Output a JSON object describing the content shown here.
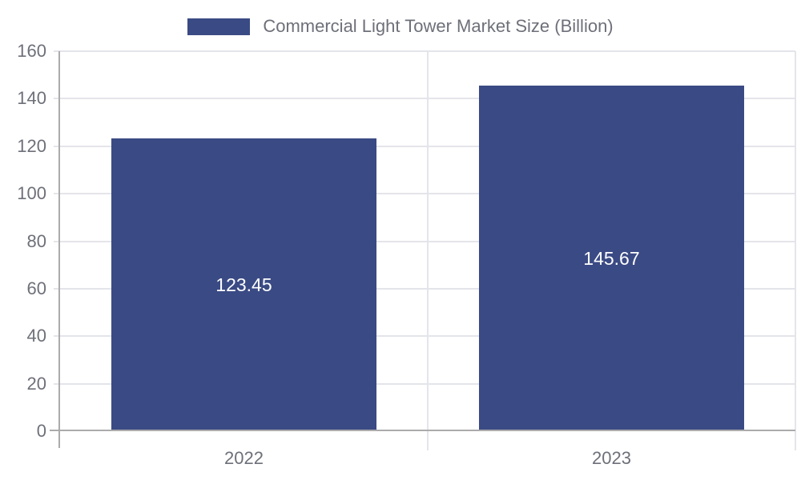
{
  "legend": {
    "items": [
      {
        "label": "Commercial Light Tower Market Size (Billion)"
      }
    ]
  },
  "chart_data": {
    "type": "bar",
    "title": "Commercial Light Tower Market Size (Billion)",
    "categories": [
      "2022",
      "2023"
    ],
    "series": [
      {
        "name": "Commercial Light Tower Market Size (Billion)",
        "values": [
          123.45,
          145.67
        ]
      }
    ],
    "value_labels": [
      "123.45",
      "145.67"
    ],
    "xlabel": "",
    "ylabel": "",
    "ylim": [
      0,
      160
    ],
    "yticks": [
      0,
      20,
      40,
      60,
      80,
      100,
      120,
      140,
      160
    ],
    "grid": true,
    "legend_position": "top-center",
    "colors": {
      "bar": "#3A4A84",
      "axis_line": "#ABABAB",
      "grid_line": "#E4E5EA",
      "tick_label": "#6E7079",
      "legend_text": "#6E7079",
      "value_label": "#FFFFFF",
      "background": "#FFFFFF"
    }
  }
}
